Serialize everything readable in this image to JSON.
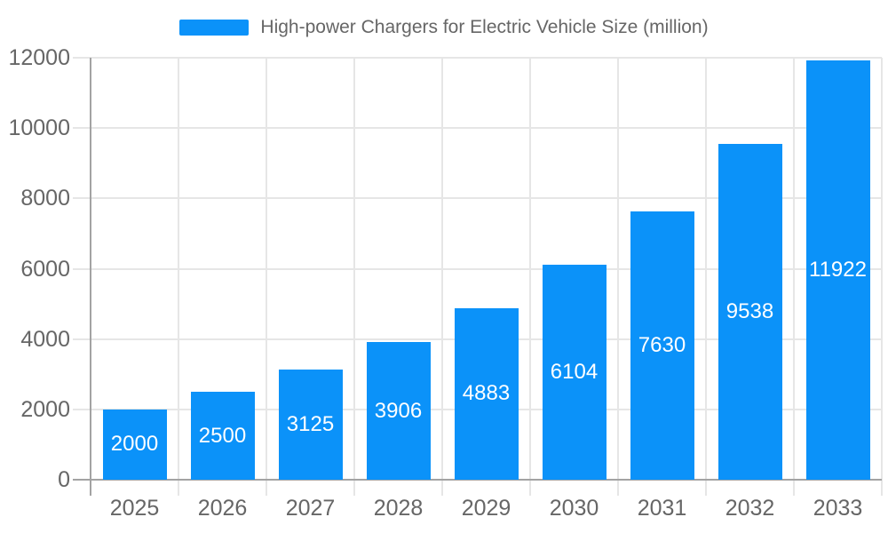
{
  "legend": {
    "label": "High-power Chargers for Electric Vehicle Size (million)",
    "swatch_color": "#0b92f9"
  },
  "chart_data": {
    "type": "bar",
    "title": "High-power Chargers for Electric Vehicle Size (million)",
    "series_name": "High-power Chargers for Electric Vehicle Size (million)",
    "categories": [
      "2025",
      "2026",
      "2027",
      "2028",
      "2029",
      "2030",
      "2031",
      "2032",
      "2033"
    ],
    "values": [
      2000,
      2500,
      3125,
      3906,
      4883,
      6104,
      7630,
      9538,
      11922
    ],
    "xlabel": "",
    "ylabel": "",
    "ylim": [
      0,
      12000
    ],
    "yticks": [
      0,
      2000,
      4000,
      6000,
      8000,
      10000,
      12000
    ],
    "grid": true,
    "legend_position": "top",
    "value_labels": "inside-center-white",
    "colors": {
      "bar": "#0b92f9",
      "value_label": "#ffffff",
      "axis_line": "#a3a3a3",
      "gridline": "#e6e6e6",
      "text": "#666666",
      "background": "#ffffff"
    }
  }
}
